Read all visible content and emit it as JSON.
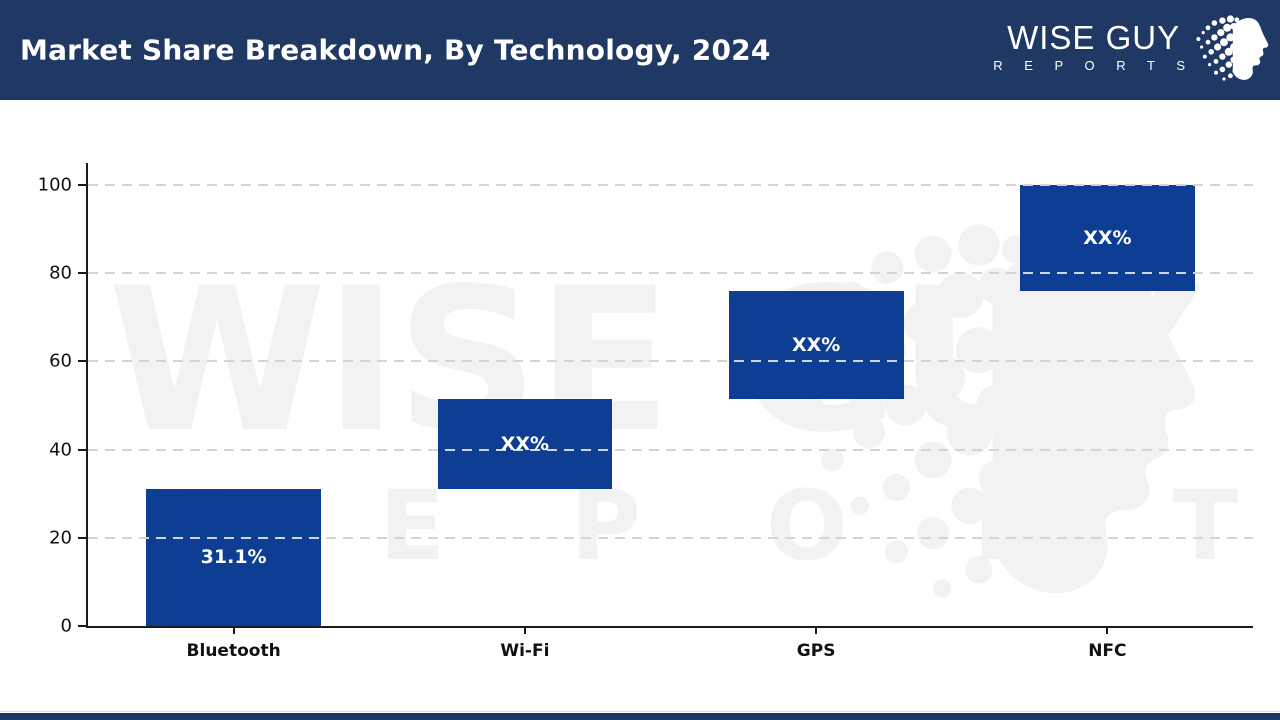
{
  "header": {
    "title": "Market Share Breakdown, By Technology, 2024",
    "logo": {
      "wordmark": "WISE GUY",
      "subtext": "R E P O R T S"
    }
  },
  "watermark": {
    "line1": "WISE GUY",
    "line2": "R E P O R T S"
  },
  "footer": {},
  "colors": {
    "header_bg": "#1f3864",
    "bar_fill": "#0d3e93",
    "bar_label_text": "#ffffff",
    "gridline": "#d4d4d4",
    "axis": "#1a1a1a",
    "watermark": "#f2f2f4"
  },
  "chart_data": {
    "type": "bar",
    "subtype": "waterfall",
    "title": "Market Share Breakdown, By Technology, 2024",
    "categories": [
      "Bluetooth",
      "Wi-Fi",
      "GPS",
      "NFC"
    ],
    "segments": [
      {
        "category": "Bluetooth",
        "start": 0,
        "end": 31.1,
        "label": "31.1%"
      },
      {
        "category": "Wi-Fi",
        "start": 31.1,
        "end": 51.5,
        "label": "XX%"
      },
      {
        "category": "GPS",
        "start": 51.5,
        "end": 76.0,
        "label": "XX%"
      },
      {
        "category": "NFC",
        "start": 76.0,
        "end": 100.0,
        "label": "XX%"
      }
    ],
    "yticks": [
      0,
      20,
      40,
      60,
      80,
      100
    ],
    "ylim": [
      0,
      105
    ],
    "xlabel": "",
    "ylabel": "",
    "grid": "horizontal dashed, drawn above bars",
    "legend": "none",
    "bar_color": "#0d3e93"
  }
}
